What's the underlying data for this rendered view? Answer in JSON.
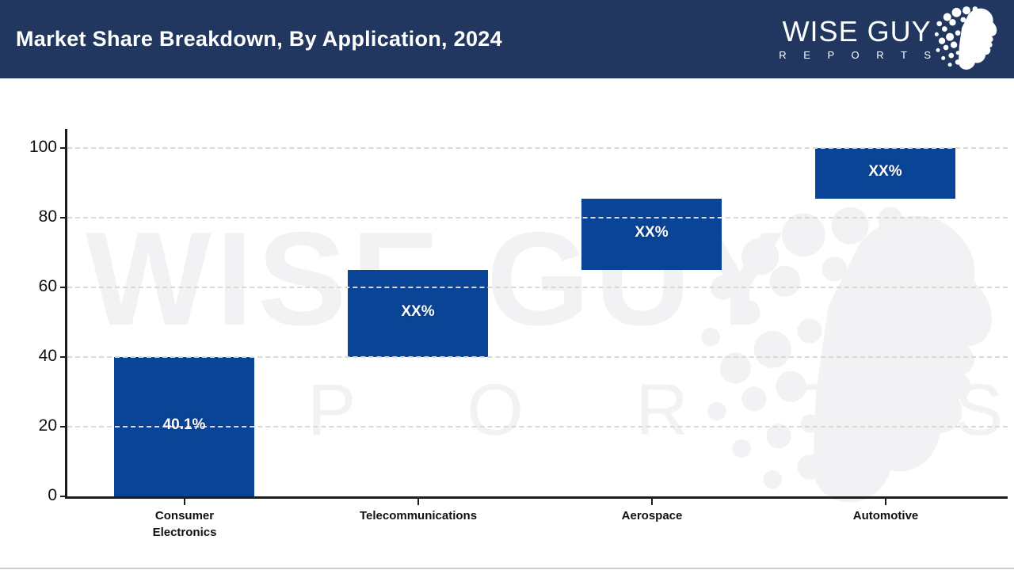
{
  "header": {
    "title": "Market Share Breakdown, By Application, 2024",
    "logo": {
      "name": "WISE GUY",
      "sub": "R E P O R T S"
    }
  },
  "watermark": {
    "line1": "WISE GUY",
    "line2": "P O R T S"
  },
  "chart_data": {
    "type": "bar",
    "variant": "waterfall",
    "title": "Market Share Breakdown, By Application, 2024",
    "categories": [
      "Consumer\nElectronics",
      "Telecommunications",
      "Aerospace",
      "Automotive"
    ],
    "segments": [
      {
        "category": "Consumer Electronics",
        "start": 0,
        "end": 40.1,
        "label": "40.1%"
      },
      {
        "category": "Telecommunications",
        "start": 40.1,
        "end": 65.0,
        "label": "XX%"
      },
      {
        "category": "Aerospace",
        "start": 65.0,
        "end": 85.4,
        "label": "XX%"
      },
      {
        "category": "Automotive",
        "start": 85.4,
        "end": 100.0,
        "label": "XX%"
      }
    ],
    "xlabel": "",
    "ylabel": "",
    "ylim": [
      0,
      100
    ],
    "yticks": [
      0,
      20,
      40,
      60,
      80,
      100
    ],
    "grid": "horizontal-dashed",
    "legend": "none",
    "bar_color": "#0a4496",
    "unit": "%"
  },
  "colors": {
    "header_bg": "#223760",
    "bar": "#0a4496",
    "axis": "#1c1c1c",
    "gridline": "#d9d9d9",
    "watermark": "#f2f2f4",
    "title_text": "#ffffff",
    "tick_text": "#111111"
  }
}
